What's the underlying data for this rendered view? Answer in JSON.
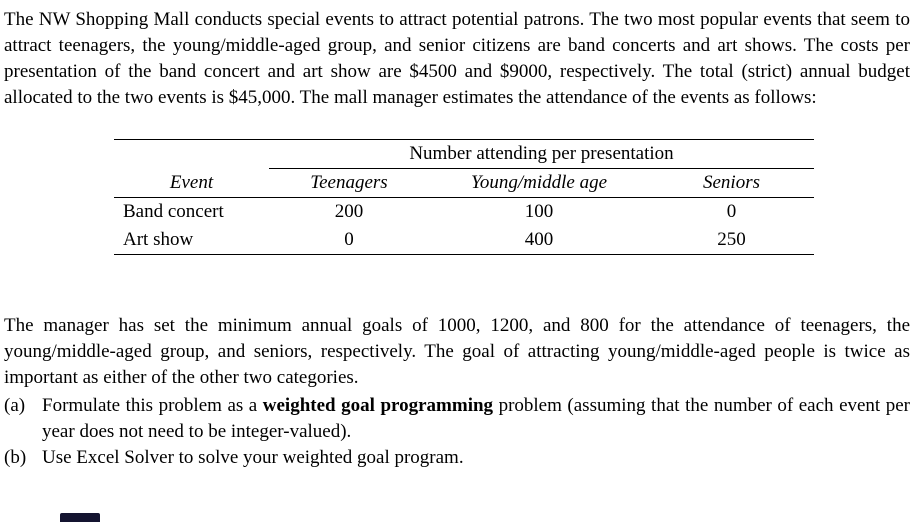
{
  "page": {
    "background": "#ffffff",
    "text_color": "#000000"
  },
  "document": {
    "intro": "The NW Shopping Mall conducts special events to attract potential patrons. The two most popular events that seem to attract teenagers, the young/middle-aged group, and senior citizens are band concerts and art shows. The costs per presentation of the band concert and art show are $4500 and $9000, respectively. The total (strict) annual budget allocated to the two events is $45,000. The mall manager estimates the attendance of the events as follows:",
    "table": {
      "spanning_header": "Number attending per presentation",
      "headers": [
        "Event",
        "Teenagers",
        "Young/middle age",
        "Seniors"
      ],
      "rows": [
        [
          "Band concert",
          "200",
          "100",
          "0"
        ],
        [
          "Art show",
          "0",
          "400",
          "250"
        ]
      ]
    },
    "goals": "The manager has set the minimum annual goals of 1000, 1200, and 800 for the attendance of teenagers, the young/middle-aged group, and seniors, respectively. The goal of attracting young/middle-aged people is twice as important as either of the other two categories.",
    "questions": {
      "a": {
        "label": "(a)",
        "before_bold": "Formulate this problem as a ",
        "bold": "weighted goal programming",
        "after_bold": " problem (assuming that the number of each event per year does not need to be integer-valued)."
      },
      "b": {
        "label": "(b)",
        "text": "Use Excel Solver to solve your weighted goal program."
      }
    }
  }
}
